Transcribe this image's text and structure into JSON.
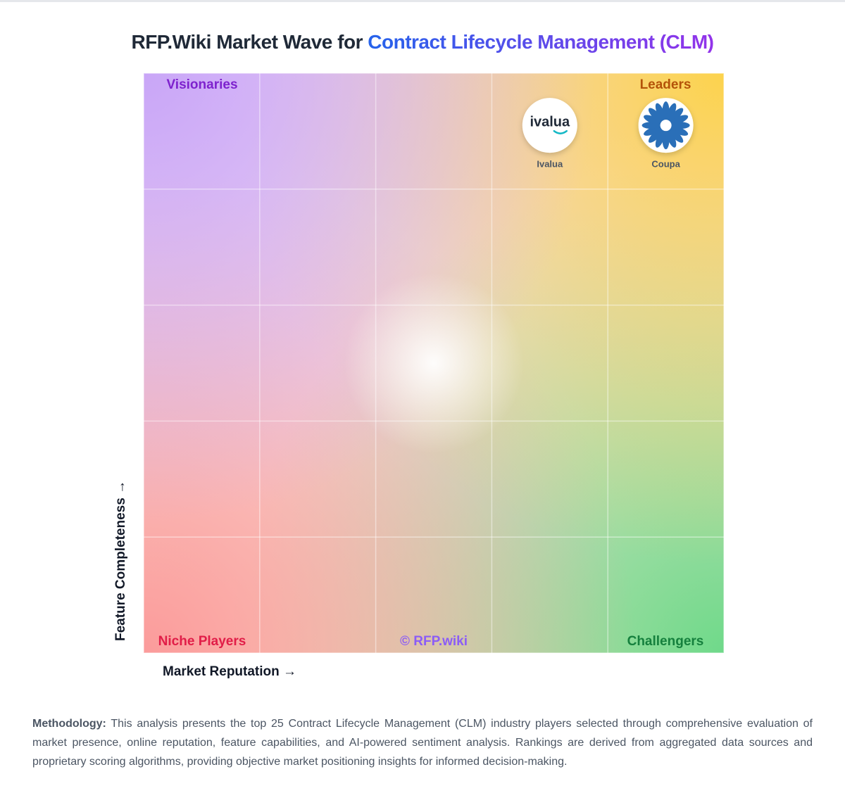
{
  "chart_data": {
    "type": "scatter",
    "title": "RFP.Wiki Market Wave for ",
    "title_highlight": "Contract Lifecycle Management (CLM)",
    "x_label": "Market Reputation →",
    "y_label": "Feature Completeness →",
    "quadrants": {
      "top_left": "Visionaries",
      "top_right": "Leaders",
      "bottom_left": "Niche Players",
      "bottom_right": "Challengers"
    },
    "watermark": "© RFP.wiki",
    "xlim": [
      0,
      5
    ],
    "ylim": [
      0,
      5
    ],
    "grid": true,
    "points": [
      {
        "name": "Ivalua",
        "logo_text": "ivalua",
        "x": 3.5,
        "y": 4.55
      },
      {
        "name": "Coupa",
        "x": 4.5,
        "y": 4.55
      }
    ]
  },
  "methodology": {
    "label": "Methodology:",
    "text": " This analysis presents the top 25 Contract Lifecycle Management (CLM) industry players selected through comprehensive evaluation of market presence, online reputation, feature capabilities, and AI-powered sentiment analysis. Rankings are derived from aggregated data sources and proprietary scoring algorithms, providing objective market positioning insights for informed decision-making."
  }
}
